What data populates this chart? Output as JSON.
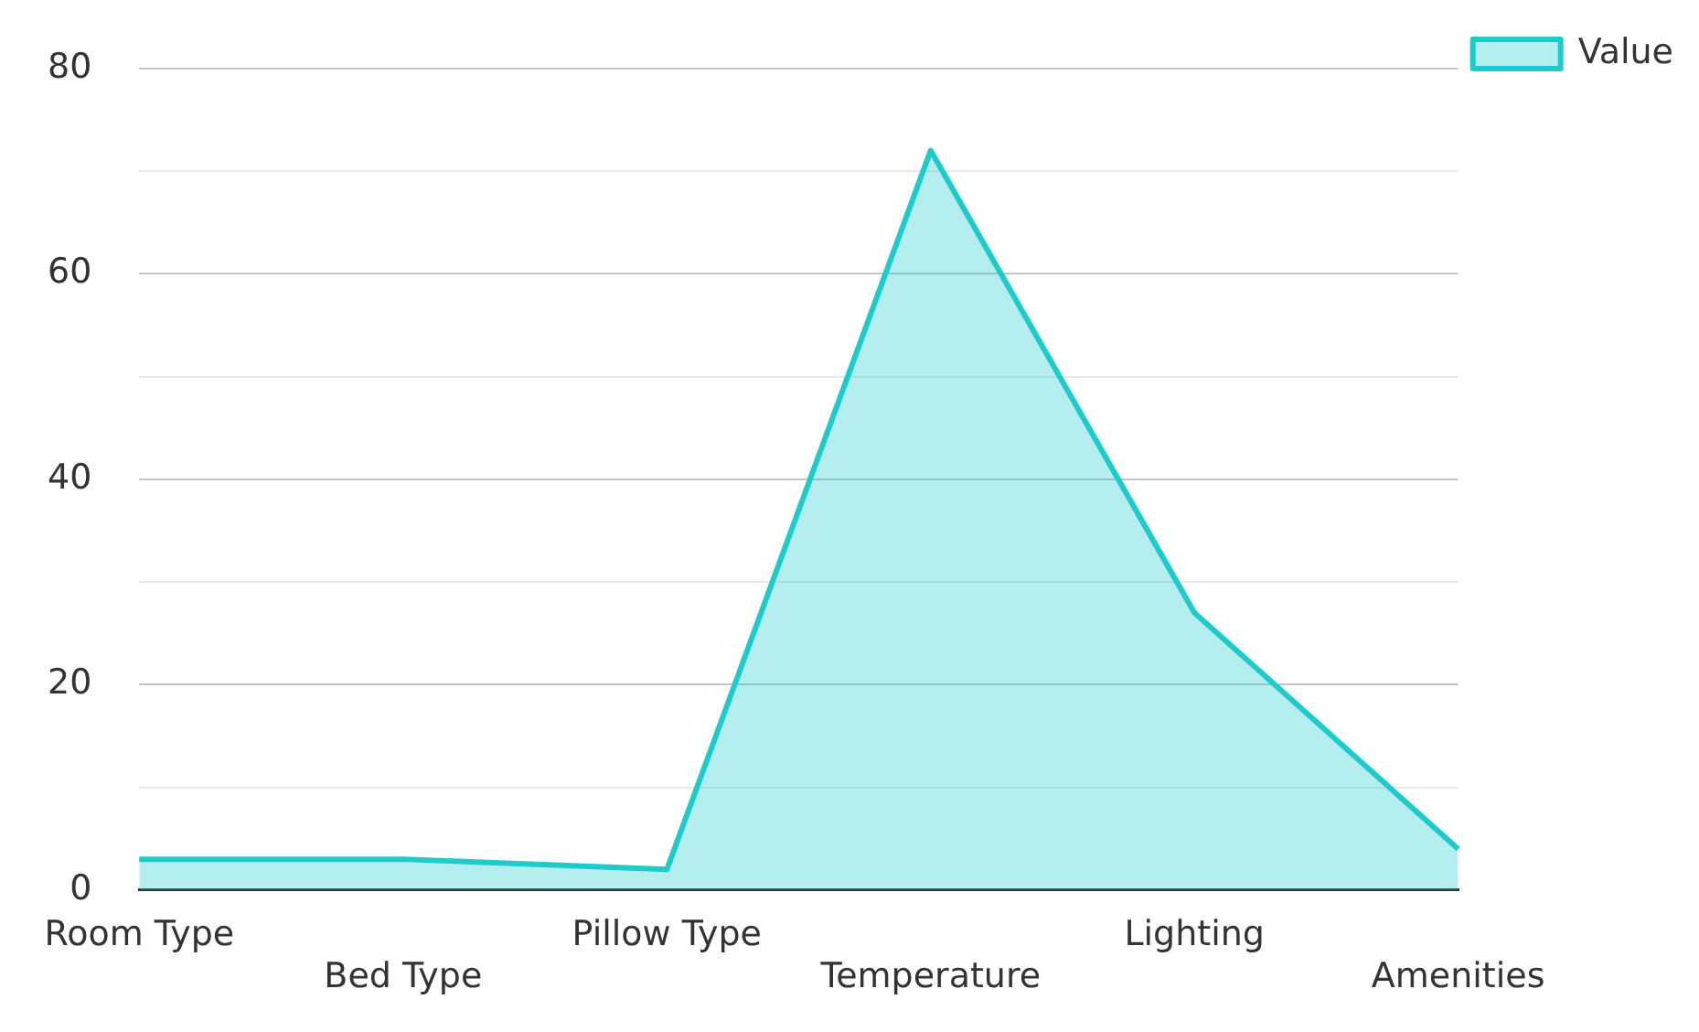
{
  "chart_data": {
    "type": "area",
    "categories": [
      "Room Type",
      "Bed Type",
      "Pillow Type",
      "Temperature",
      "Lighting",
      "Amenities"
    ],
    "series": [
      {
        "name": "Value",
        "color": "#1ecbcb",
        "values": [
          3,
          3,
          2,
          72,
          27,
          4
        ]
      }
    ],
    "ylim": [
      0,
      80
    ],
    "yticks": [
      0,
      {
        "value": 10,
        "label": null
      },
      20,
      {
        "value": 30,
        "label": null
      },
      40,
      {
        "value": 50,
        "label": null
      },
      60,
      {
        "value": 70,
        "label": null
      },
      80
    ],
    "grid": "y",
    "legend": "top right"
  }
}
